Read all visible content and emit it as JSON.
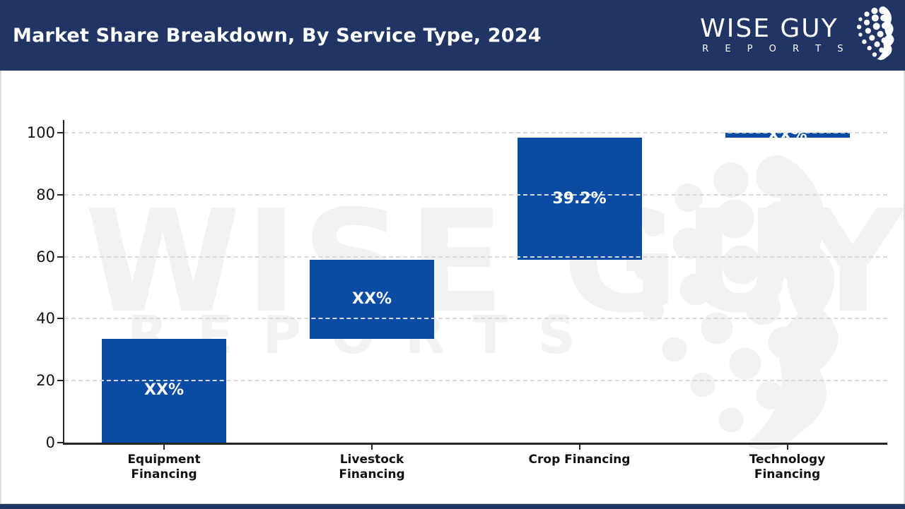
{
  "header": {
    "title": "Market Share Breakdown, By Service Type, 2024",
    "logo": {
      "line1": "WISE GUY",
      "line2": "R E P O R T S",
      "face_icon": "dotted-head-profile"
    }
  },
  "watermark": {
    "line1": "WISE GUY",
    "line2": "REPORTS",
    "face_icon": "dotted-head-profile"
  },
  "colors": {
    "header_bg": "#213564",
    "footer_bg": "#213564",
    "bar_blue": "#0a4ca4",
    "grid_gray": "#d9d9d9",
    "bar_label_white": "#ffffff",
    "watermark_gray": "#f2f2f2"
  },
  "chart_data": {
    "type": "bar",
    "subtype": "waterfall",
    "title": "Market Share Breakdown, By Service Type, 2024",
    "categories": [
      "Equipment Financing",
      "Livestock Financing",
      "Crop Financing",
      "Technology Financing"
    ],
    "category_label_lines": [
      [
        "Equipment",
        "Financing"
      ],
      [
        "Livestock",
        "Financing"
      ],
      [
        "Crop Financing"
      ],
      [
        "Technology",
        "Financing"
      ]
    ],
    "bars": [
      {
        "category": "Equipment Financing",
        "start": 0,
        "end": 33.5,
        "value": 33.5,
        "value_label": "XX%"
      },
      {
        "category": "Livestock Financing",
        "start": 33.5,
        "end": 59.1,
        "value": 25.6,
        "value_label": "XX%"
      },
      {
        "category": "Crop Financing",
        "start": 59.1,
        "end": 98.3,
        "value": 39.2,
        "value_label": "39.2%"
      },
      {
        "category": "Technology Financing",
        "start": 98.3,
        "end": 100,
        "value": 1.7,
        "value_label": "XX%"
      }
    ],
    "yticks": [
      0,
      20,
      40,
      60,
      80,
      100
    ],
    "ylim": [
      0,
      103.5
    ],
    "xlabel": "",
    "ylabel": "",
    "grid": {
      "axis": "y",
      "style": "dashed",
      "drawn_over_bars": true
    },
    "legend": null
  }
}
